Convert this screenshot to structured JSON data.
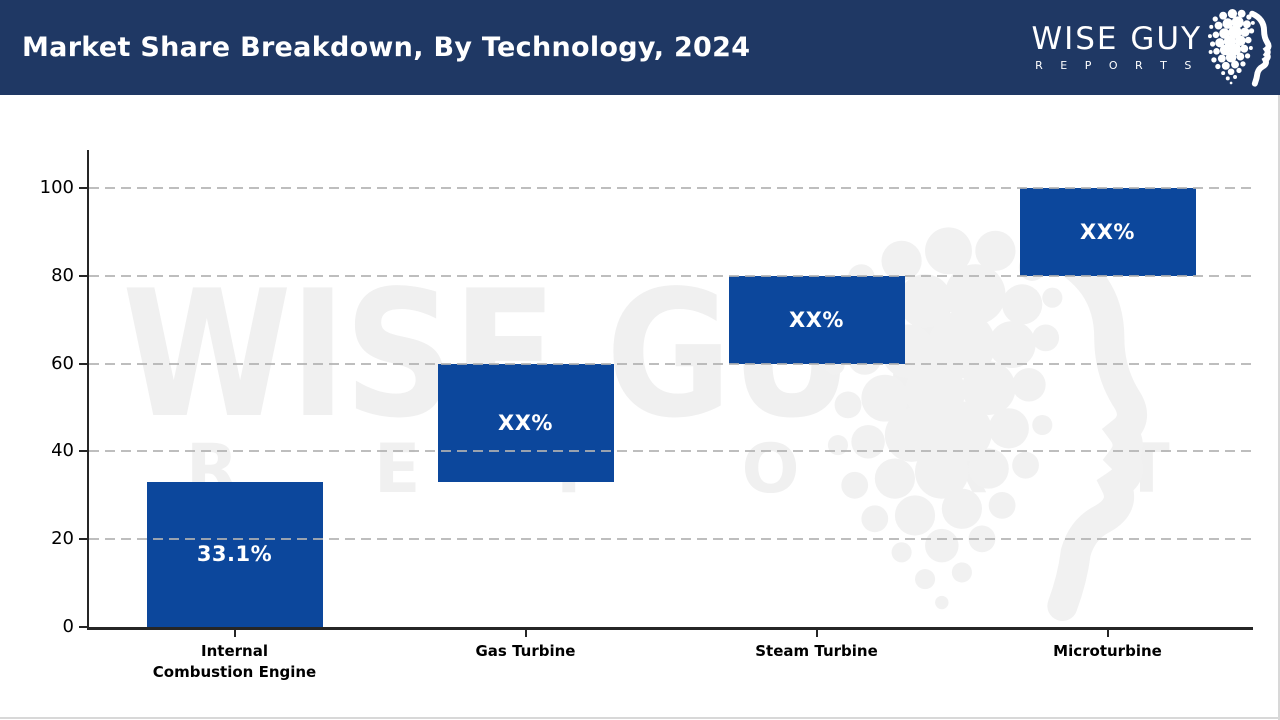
{
  "header": {
    "title": "Market Share Breakdown, By Technology, 2024",
    "logo": {
      "name": "WISE GUY",
      "tagline": "R E P O R T S"
    }
  },
  "watermark": {
    "line1": "WISE GUY",
    "line2": "R E P O R T S"
  },
  "chart_data": {
    "type": "bar",
    "subtype": "waterfall",
    "title": "Market Share Breakdown, By Technology, 2024",
    "categories": [
      "Internal\nCombustion Engine",
      "Gas Turbine",
      "Steam Turbine",
      "Microturbine"
    ],
    "bars": [
      {
        "category": "Internal\nCombustion Engine",
        "start": 0,
        "end": 33.1,
        "label": "33.1%"
      },
      {
        "category": "Gas Turbine",
        "start": 33.1,
        "end": 60,
        "label": "XX%"
      },
      {
        "category": "Steam Turbine",
        "start": 60,
        "end": 80,
        "label": "XX%"
      },
      {
        "category": "Microturbine",
        "start": 80,
        "end": 100,
        "label": "XX%"
      }
    ],
    "y_ticks": [
      0,
      20,
      40,
      60,
      80,
      100
    ],
    "ylim": [
      0,
      107
    ],
    "xlabel": "",
    "ylabel": "",
    "grid": "horizontal-dashed",
    "legend": "none",
    "bar_color": "#0c479c",
    "bar_label_color": "#ffffff"
  },
  "colors": {
    "header_bg": "#1f3864",
    "plot_bg": "#ffffff",
    "grid": "#b2b2b2",
    "axis": "#262626",
    "watermark": "#f0f0f0",
    "frame_line": "#d8d8d8"
  }
}
